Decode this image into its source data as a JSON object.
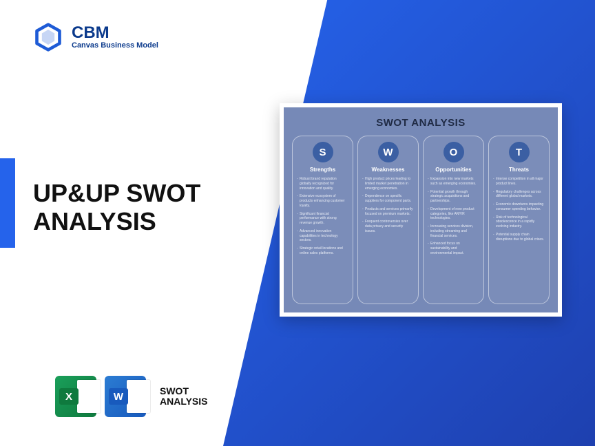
{
  "brand": {
    "abbr": "CBM",
    "name": "Canvas Business Model",
    "logo_color": "#1e5bd6"
  },
  "heading": "UP&UP SWOT ANALYSIS",
  "file_row": {
    "excel_letter": "X",
    "word_letter": "W",
    "label_line1": "SWOT",
    "label_line2": "ANALYSIS"
  },
  "preview": {
    "title": "SWOT ANALYSIS",
    "columns": [
      {
        "letter": "S",
        "heading": "Strengths",
        "items": [
          "Robust brand reputation globally recognized for innovation and quality.",
          "Extensive ecosystem of products enhancing customer loyalty.",
          "Significant financial performance with strong revenue growth.",
          "Advanced innovation capabilities in technology sectors.",
          "Strategic retail locations and online sales platforms."
        ]
      },
      {
        "letter": "W",
        "heading": "Weaknesses",
        "items": [
          "High product prices leading to limited market penetration in emerging economies.",
          "Dependence on specific suppliers for component parts.",
          "Products and services primarily focused on premium markets.",
          "Frequent controversies over data privacy and security issues."
        ]
      },
      {
        "letter": "O",
        "heading": "Opportunities",
        "items": [
          "Expansion into new markets such as emerging economies.",
          "Potential growth through strategic acquisitions and partnerships.",
          "Development of new product categories, like AR/VR technologies.",
          "Increasing services division, including streaming and financial services.",
          "Enhanced focus on sustainability and environmental impact."
        ]
      },
      {
        "letter": "T",
        "heading": "Threats",
        "items": [
          "Intense competition in all major product lines.",
          "Regulatory challenges across different global markets.",
          "Economic downturns impacting consumer spending behavior.",
          "Risk of technological obsolescence in a rapidly evolving industry.",
          "Potential supply chain disruptions due to global crises."
        ]
      }
    ]
  },
  "colors": {
    "accent": "#2563eb",
    "gradient_start": "#2563eb",
    "gradient_end": "#1e40af",
    "preview_bg": "#7689b7",
    "swot_circle": "#3b5fa3"
  }
}
